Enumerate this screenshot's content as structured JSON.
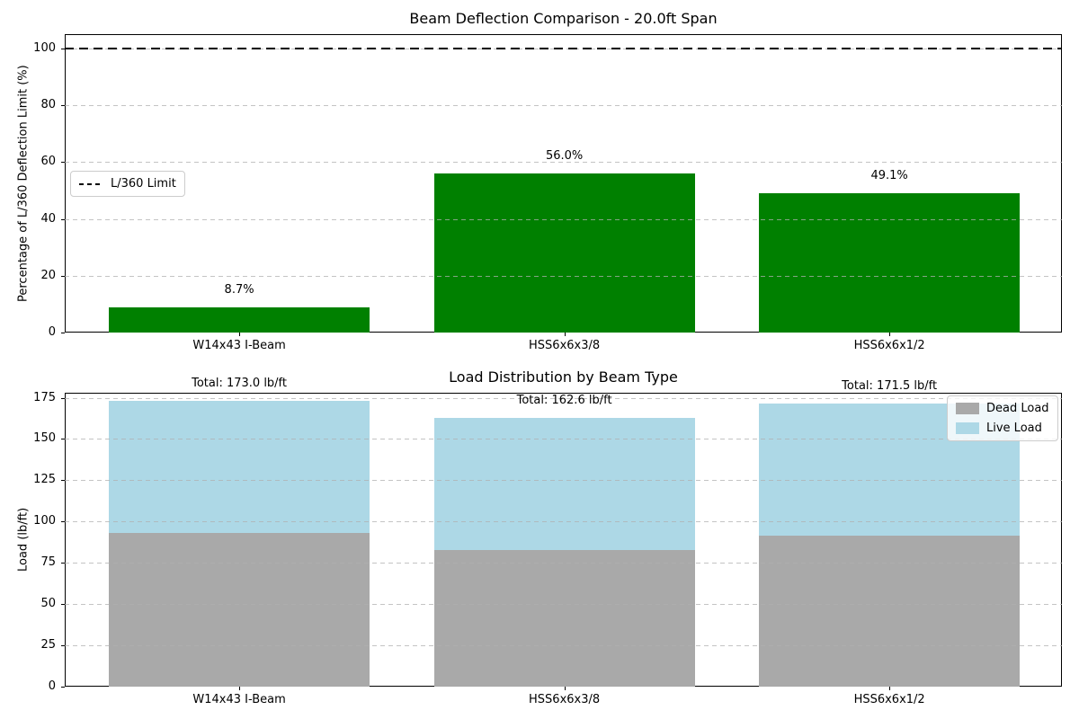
{
  "figure": {
    "background": "#ffffff"
  },
  "chart_data": [
    {
      "type": "bar",
      "title": "Beam Deflection Comparison - 20.0ft Span",
      "xlabel": "",
      "ylabel": "Percentage of L/360 Deflection Limit (%)",
      "categories": [
        "W14x43 I-Beam",
        "HSS6x6x3/8",
        "HSS6x6x1/2"
      ],
      "values": [
        8.7,
        56.0,
        49.1
      ],
      "bar_labels": [
        "8.7%",
        "56.0%",
        "49.1%"
      ],
      "bar_color": "#008000",
      "yticks": [
        0,
        20,
        40,
        60,
        80,
        100
      ],
      "ylim": [
        0,
        105
      ],
      "grid": "dashed-horizontal-above-bars",
      "reference_line": {
        "value": 100,
        "label": "L/360 Limit",
        "color": "#000000",
        "style": "dashed"
      },
      "legend": {
        "position": "center-left",
        "entries": [
          {
            "label": "L/360 Limit",
            "swatch_type": "dashed-line",
            "color": "#000000"
          }
        ]
      }
    },
    {
      "type": "stacked-bar",
      "title": "Load Distribution by Beam Type",
      "xlabel": "",
      "ylabel": "Load (lb/ft)",
      "categories": [
        "W14x43 I-Beam",
        "HSS6x6x3/8",
        "HSS6x6x1/2"
      ],
      "series": [
        {
          "name": "Dead Load",
          "values": [
            93.0,
            82.6,
            91.5
          ],
          "color": "#A9A9A9"
        },
        {
          "name": "Live Load",
          "values": [
            80.0,
            80.0,
            80.0
          ],
          "color": "#ADD8E6"
        }
      ],
      "totals": [
        173.0,
        162.6,
        171.5
      ],
      "total_labels": [
        "Total: 173.0 lb/ft",
        "Total: 162.6 lb/ft",
        "Total: 171.5 lb/ft"
      ],
      "yticks": [
        0,
        25,
        50,
        75,
        100,
        125,
        150,
        175
      ],
      "ylim": [
        0,
        178
      ],
      "grid": "dashed-horizontal-above-bars",
      "legend": {
        "position": "top-right",
        "entries": [
          {
            "label": "Dead Load",
            "swatch_type": "patch",
            "color": "#A9A9A9"
          },
          {
            "label": "Live Load",
            "swatch_type": "patch",
            "color": "#ADD8E6"
          }
        ]
      }
    }
  ],
  "colors": {
    "bar_green": "#008000",
    "dead_gray": "#A9A9A9",
    "live_blue": "#ADD8E6",
    "grid_line": "#b0b0b0",
    "reference_line": "#000000",
    "spine": "#000000",
    "text": "#000000"
  }
}
